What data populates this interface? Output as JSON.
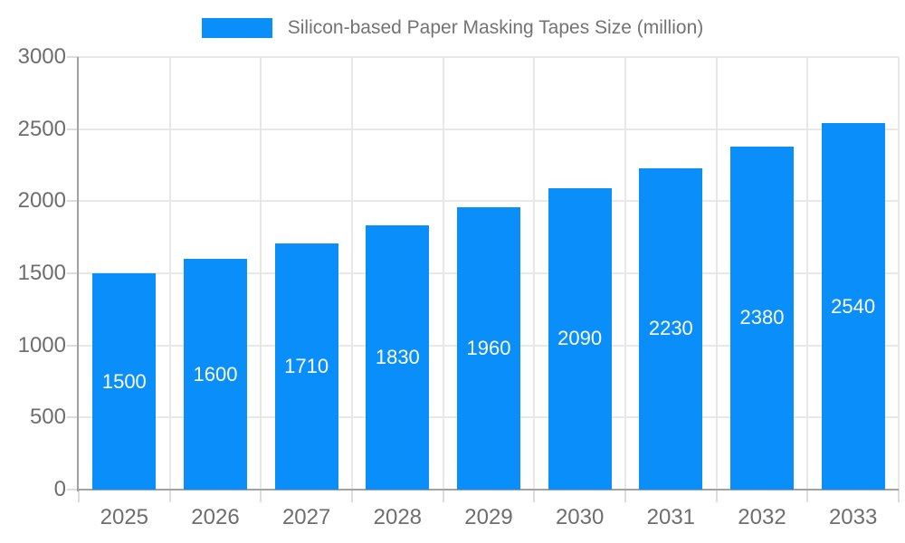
{
  "chart_data": {
    "type": "bar",
    "title": "Silicon-based Paper Masking Tapes Size (million)",
    "series_name": "Silicon-based Paper Masking Tapes Size (million)",
    "categories": [
      "2025",
      "2026",
      "2027",
      "2028",
      "2029",
      "2030",
      "2031",
      "2032",
      "2033"
    ],
    "values": [
      1500,
      1600,
      1710,
      1830,
      1960,
      2090,
      2230,
      2380,
      2540
    ],
    "value_labels": [
      "1500",
      "1600",
      "1710",
      "1830",
      "1960",
      "2090",
      "2230",
      "2380",
      "2540"
    ],
    "value_label_position": "inside-center",
    "xlabel": "",
    "ylabel": "",
    "ylim": [
      0,
      3000
    ],
    "y_ticks": [
      0,
      500,
      1000,
      1500,
      2000,
      2500,
      3000
    ],
    "grid": "both",
    "legend_position": "top-center",
    "colors": {
      "bar": "#0a8ef9",
      "value_label": "#ffffff",
      "axis_line": "#a2a2a2",
      "grid_line": "#e8e8e8",
      "tick_mark": "#dcdcdc",
      "axis_text": "#6e6e6e",
      "legend_text": "#737373",
      "background": "#ffffff"
    }
  }
}
